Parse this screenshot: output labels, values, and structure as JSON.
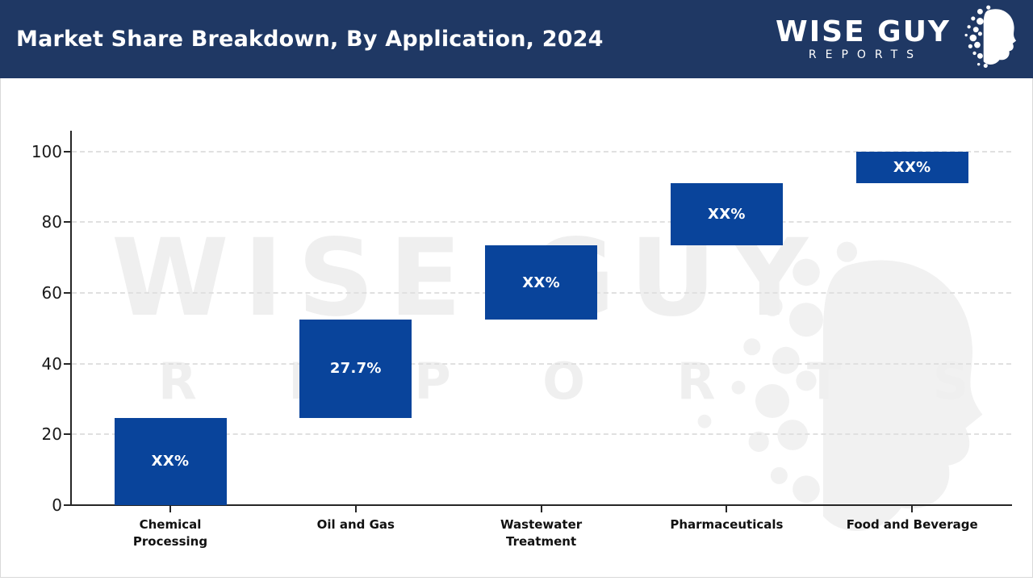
{
  "header": {
    "title": "Market Share Breakdown, By Application, 2024",
    "logo": {
      "line1": "WISE GUY",
      "line2": "REPORTS"
    }
  },
  "watermark": {
    "line1": "WISE GUY",
    "line2": "R E P O R T S"
  },
  "chart_data": {
    "type": "bar",
    "subtype": "waterfall",
    "title": "Market Share Breakdown, By Application, 2024",
    "xlabel": "",
    "ylabel": "",
    "ylim": [
      0,
      100
    ],
    "yticks": [
      0,
      20,
      40,
      60,
      80,
      100
    ],
    "grid": "horizontal-dashed",
    "legend": "none",
    "categories": [
      "Chemical\nProcessing",
      "Oil and Gas",
      "Wastewater\nTreatment",
      "Pharmaceuticals",
      "Food and Beverage"
    ],
    "segments": [
      {
        "category": "Chemical Processing",
        "start": 0,
        "end": 24.7,
        "label": "XX%"
      },
      {
        "category": "Oil and Gas",
        "start": 24.7,
        "end": 52.4,
        "label": "27.7%"
      },
      {
        "category": "Wastewater Treatment",
        "start": 52.4,
        "end": 73.4,
        "label": "XX%"
      },
      {
        "category": "Pharmaceuticals",
        "start": 73.4,
        "end": 91.0,
        "label": "XX%"
      },
      {
        "category": "Food and Beverage",
        "start": 91.0,
        "end": 100.0,
        "label": "XX%"
      }
    ]
  },
  "colors": {
    "header_bg": "#1F3864",
    "bar": "#09449B",
    "bar_label": "#ffffff",
    "watermark": "#efefef",
    "grid": "#e0e0e0",
    "axis": "#262626"
  }
}
